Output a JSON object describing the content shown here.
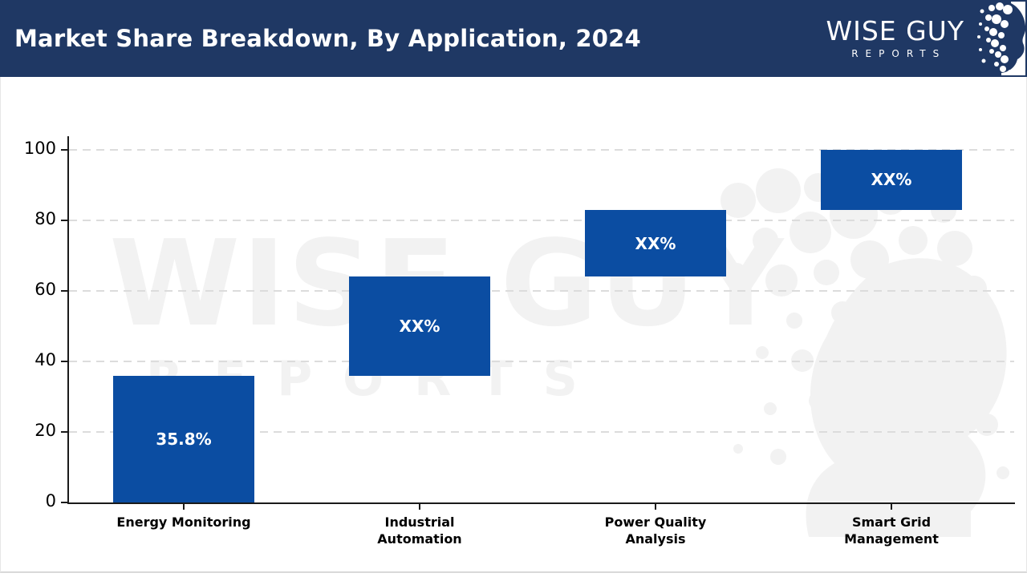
{
  "header": {
    "title": "Market Share Breakdown, By Application, 2024",
    "logo": {
      "line1": "WISE GUY",
      "line2": "REPORTS"
    }
  },
  "watermark": {
    "line1": "WISE GUY",
    "line2": "REPORTS"
  },
  "icons": [
    "logo-face-icon",
    "watermark-face-icon"
  ],
  "colors": {
    "header_bg": "#1f3864",
    "bar": "#0b4da2",
    "bar_label": "#ffffff",
    "axis": "#1a1a1a",
    "gridline": "#dcdcdc",
    "watermark": "#f2f2f2",
    "title_text": "#ffffff"
  },
  "chart_data": {
    "type": "bar",
    "subtype": "floating-waterfall",
    "title": "Market Share Breakdown, By Application, 2024",
    "xlabel": "",
    "ylabel": "",
    "ylim": [
      0,
      100
    ],
    "yticks": [
      0,
      20,
      40,
      60,
      80,
      100
    ],
    "grid": "horizontal-dashed",
    "legend": "none",
    "bar_color": "#0b4da2",
    "categories": [
      "Energy Monitoring",
      "Industrial Automation",
      "Power Quality Analysis",
      "Smart Grid Management"
    ],
    "category_lines": [
      [
        "Energy Monitoring"
      ],
      [
        "Industrial",
        "Automation"
      ],
      [
        "Power Quality",
        "Analysis"
      ],
      [
        "Smart Grid",
        "Management"
      ]
    ],
    "values": [
      {
        "category": "Energy Monitoring",
        "start": 0,
        "end": 35.8,
        "label": "35.8%"
      },
      {
        "category": "Industrial Automation",
        "start": 35.8,
        "end": 64,
        "label": "XX%"
      },
      {
        "category": "Power Quality Analysis",
        "start": 64,
        "end": 83,
        "label": "XX%"
      },
      {
        "category": "Smart Grid Management",
        "start": 83,
        "end": 100,
        "label": "XX%"
      }
    ]
  }
}
